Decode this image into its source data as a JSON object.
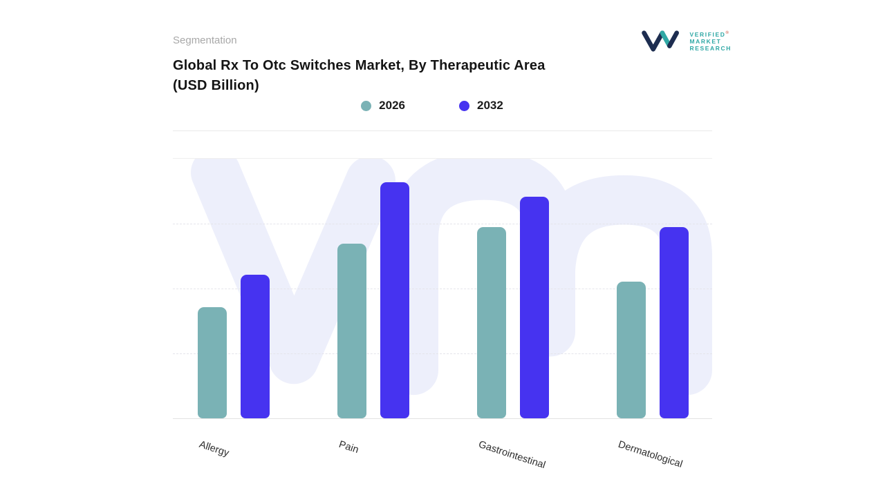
{
  "header": {
    "eyebrow": "Segmentation",
    "title_line1": "Global Rx To Otc Switches Market, By Therapeutic Area",
    "title_line2": "(USD Billion)"
  },
  "logo": {
    "words": [
      "VERIFIED",
      "MARKET",
      "RESEARCH"
    ],
    "registered_mark": "®",
    "navy": "#1d2d50",
    "teal": "#2fa8a5"
  },
  "colors": {
    "series_2026": "#7ab2b5",
    "series_2032": "#4633f0",
    "watermark": "#edeffb",
    "gridline": "#e4e4ea"
  },
  "chart_data": {
    "type": "bar",
    "title": "Global Rx To Otc Switches Market, By Therapeutic Area (USD Billion)",
    "units": "USD Billion",
    "categories": [
      "Allergy",
      "Pain",
      "Gastrointestinal",
      "Dermatological"
    ],
    "series": [
      {
        "name": "2026",
        "color": "#7ab2b5",
        "values": [
          4.7,
          7.4,
          8.1,
          5.8
        ]
      },
      {
        "name": "2032",
        "color": "#4633f0",
        "values": [
          6.1,
          10.0,
          9.4,
          8.1
        ]
      }
    ],
    "xlabel": "",
    "ylabel": "",
    "ylim": [
      0,
      11
    ],
    "grid": "horizontal-dashed",
    "legend_position": "top-center",
    "value_axis_labels_visible": false
  }
}
